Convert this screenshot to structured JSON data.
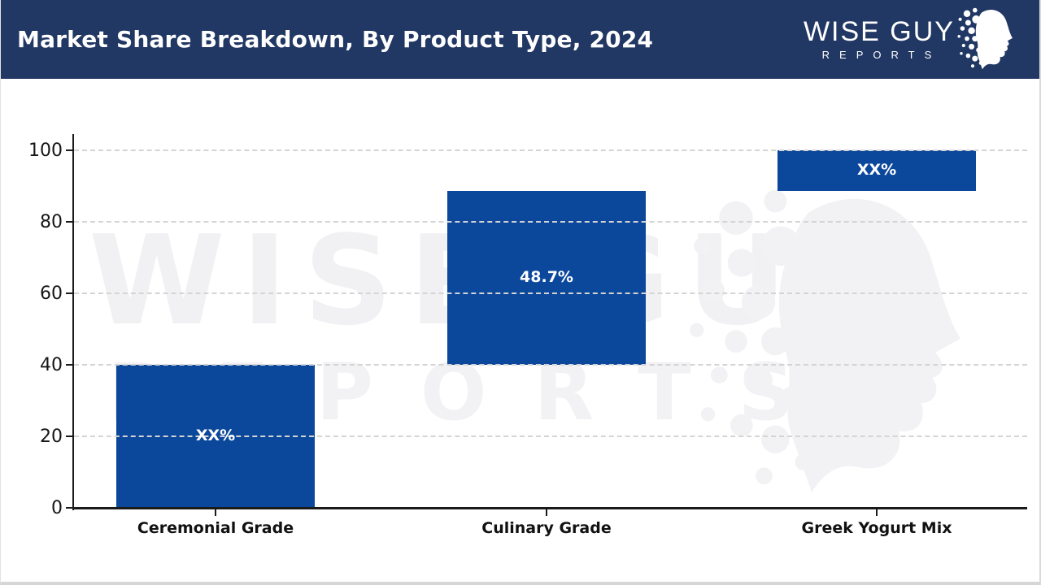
{
  "header": {
    "title": "Market Share Breakdown, By Product Type, 2024",
    "brand": {
      "line1": "WISE GUY",
      "line2": "REPORTS"
    },
    "bg_color": "#213764"
  },
  "watermark": {
    "line1": "WISE GUY",
    "line2": "REPORTS"
  },
  "chart_data": {
    "type": "bar",
    "subtype": "floating-waterfall",
    "title": "Market Share Breakdown, By Product Type, 2024",
    "categories": [
      "Ceremonial Grade",
      "Culinary Grade",
      "Greek Yogurt Mix"
    ],
    "bars": [
      {
        "category": "Ceremonial Grade",
        "start": 0,
        "end": 40,
        "label": "XX%"
      },
      {
        "category": "Culinary Grade",
        "start": 40,
        "end": 88.7,
        "label": "48.7%"
      },
      {
        "category": "Greek Yogurt Mix",
        "start": 88.7,
        "end": 100,
        "label": "XX%"
      }
    ],
    "yticks": [
      0,
      20,
      40,
      60,
      80,
      100
    ],
    "ylim": [
      0,
      100
    ],
    "xlabel": "",
    "ylabel": "",
    "grid": true,
    "legend": false,
    "bar_color": "#0b479b",
    "bar_label_color": "#ffffff",
    "grid_color": "#d4d4d4",
    "axis_color": "#1a1a1a"
  }
}
